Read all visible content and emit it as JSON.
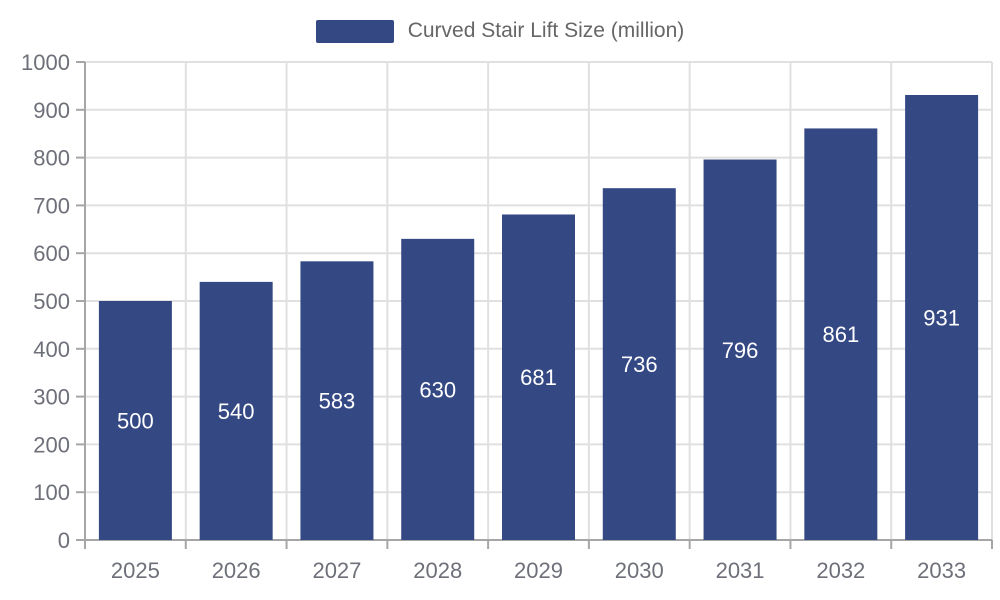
{
  "legend": {
    "label": "Curved Stair Lift Size (million)"
  },
  "chart_data": {
    "type": "bar",
    "title": "Curved Stair Lift Size (million)",
    "categories": [
      "2025",
      "2026",
      "2027",
      "2028",
      "2029",
      "2030",
      "2031",
      "2032",
      "2033"
    ],
    "values": [
      500,
      540,
      583,
      630,
      681,
      736,
      796,
      861,
      931
    ],
    "series": [
      {
        "name": "Curved Stair Lift Size (million)",
        "values": [
          500,
          540,
          583,
          630,
          681,
          736,
          796,
          861,
          931
        ]
      }
    ],
    "xlabel": "",
    "ylabel": "",
    "ylim": [
      0,
      1000
    ],
    "y_ticks": [
      0,
      100,
      200,
      300,
      400,
      500,
      600,
      700,
      800,
      900,
      1000
    ],
    "grid": true,
    "legend_position": "top-center",
    "value_labels_inside_bars": true,
    "colors": {
      "bar": "#344884",
      "value_label": "#ffffff",
      "axis_label": "#6e7079",
      "legend_text": "#666666",
      "axis_line": "#a6a6a6",
      "grid_line": "#e0e0e0",
      "background": "#ffffff"
    }
  }
}
